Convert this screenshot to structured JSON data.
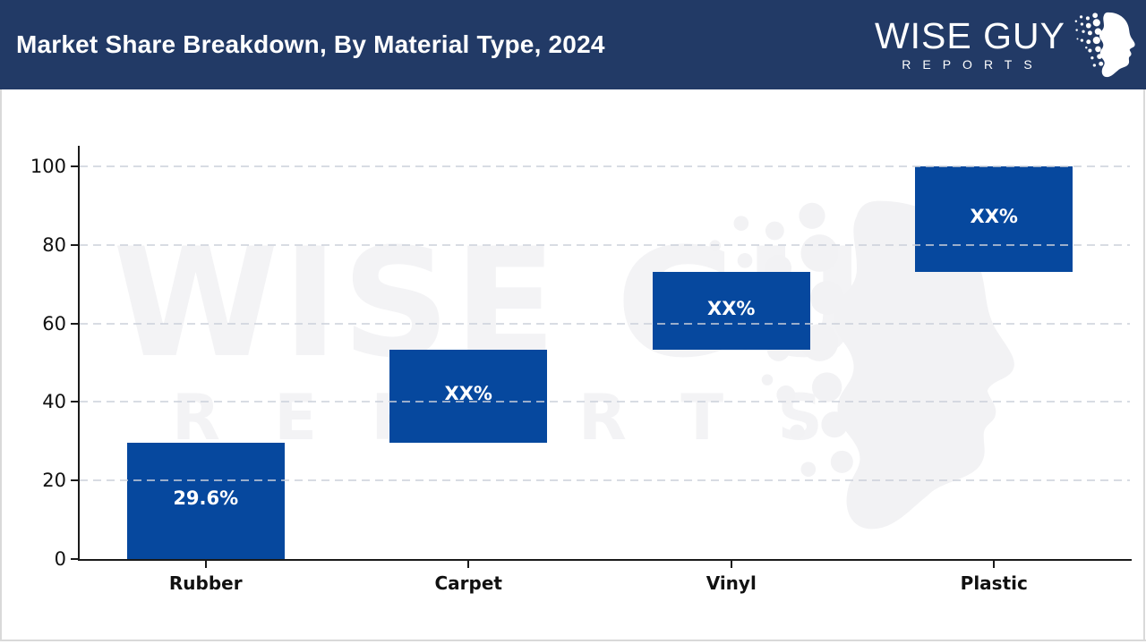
{
  "header": {
    "title": "Market Share Breakdown, By Material Type, 2024",
    "brand": {
      "line1": "WISE GUY",
      "line2": "REPORTS"
    }
  },
  "watermark": {
    "line1": "WISE GUY",
    "line2": "R E P O R T S"
  },
  "chart_data": {
    "type": "bar",
    "variant": "waterfall",
    "title": "Market Share Breakdown, By Material Type, 2024",
    "categories": [
      "Rubber",
      "Carpet",
      "Vinyl",
      "Plastic"
    ],
    "values": [
      29.6,
      23.6,
      19.9,
      26.9
    ],
    "segments": [
      {
        "category": "Rubber",
        "start": 0,
        "end": 29.6,
        "label": "29.6%"
      },
      {
        "category": "Carpet",
        "start": 29.6,
        "end": 53.2,
        "label": "XX%"
      },
      {
        "category": "Vinyl",
        "start": 53.2,
        "end": 73.1,
        "label": "XX%"
      },
      {
        "category": "Plastic",
        "start": 73.1,
        "end": 100,
        "label": "XX%"
      }
    ],
    "ylim": [
      0,
      100
    ],
    "yticks": [
      0,
      20,
      40,
      60,
      80,
      100
    ],
    "xlabel": "",
    "ylabel": "",
    "grid": "horizontal-dashed",
    "legend": "none",
    "bar_color": "#06489E",
    "label_color": "#FFFFFF"
  },
  "colors": {
    "header_bg": "#223A66",
    "bar": "#06489E",
    "axis": "#1A1A1A",
    "grid": "#DDDDDD",
    "watermark": "#F3F3F5"
  }
}
